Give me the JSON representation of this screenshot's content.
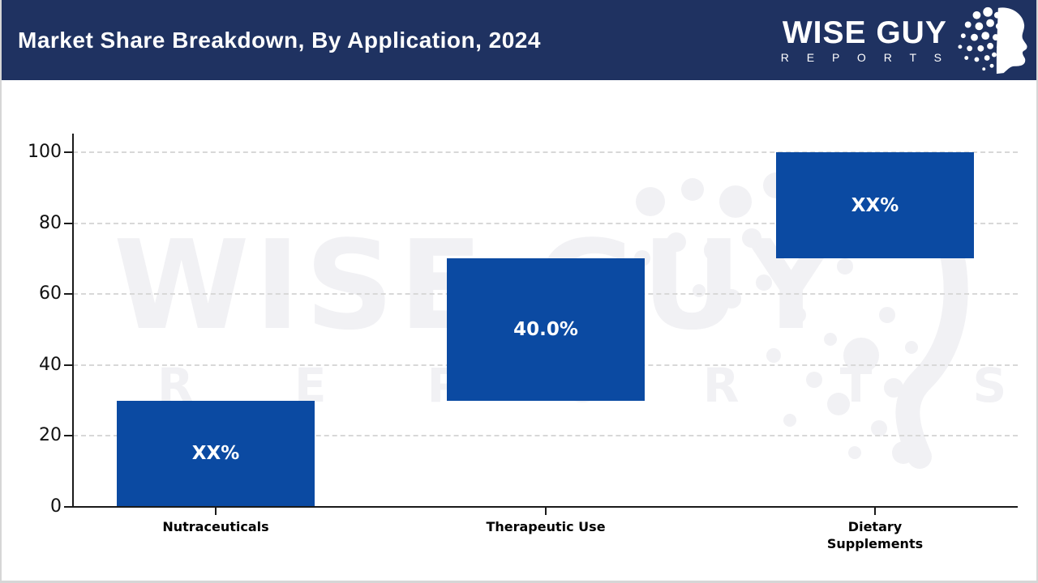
{
  "header": {
    "title": "Market Share Breakdown, By Application, 2024",
    "logo": {
      "line1": "WISE GUY",
      "line2": "R E P O R T S"
    }
  },
  "watermark": {
    "line1": "WISE GUY",
    "line2": "R E P O R T S"
  },
  "chart_data": {
    "type": "bar",
    "subtype": "floating-segment-waterfall",
    "title": "Market Share Breakdown, By Application, 2024",
    "categories": [
      "Nutraceuticals",
      "Therapeutic Use",
      "Dietary\nSupplements"
    ],
    "segments": [
      {
        "category": "Nutraceuticals",
        "from": 0,
        "to": 30,
        "label": "XX%"
      },
      {
        "category": "Therapeutic Use",
        "from": 30,
        "to": 70,
        "label": "40.0%"
      },
      {
        "category": "Dietary Supplements",
        "from": 70,
        "to": 100,
        "label": "XX%"
      }
    ],
    "yticks": [
      0,
      20,
      40,
      60,
      80,
      100
    ],
    "ylim": [
      0,
      105
    ],
    "xlabel": "",
    "ylabel": "",
    "grid": "horizontal-dashed",
    "legend": "none",
    "bar_color": "#0b4aa2",
    "bar_label_color": "#ffffff"
  },
  "colors": {
    "header_bg": "#1f3261",
    "bar": "#0b4aa2",
    "grid": "#d8d8d8",
    "axis": "#1a1a1a",
    "watermark": "#f1f1f4",
    "canvas_border": "#d6d6d6"
  }
}
